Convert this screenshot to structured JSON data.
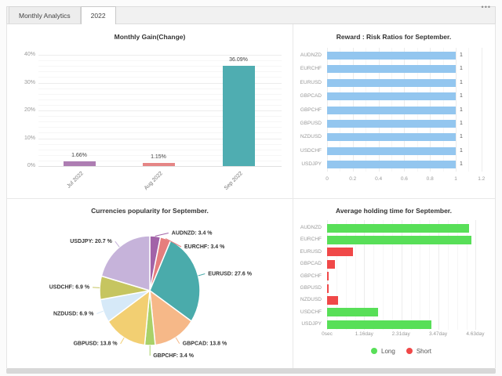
{
  "window": {
    "tabs": [
      {
        "label": "Monthly Analytics",
        "active": false
      },
      {
        "label": "2022",
        "active": true
      }
    ]
  },
  "icons": {
    "more_menu": "•••"
  },
  "colors": {
    "teal": "#4fadb1",
    "purple": "#ad7db2",
    "salmon": "#e58585",
    "light_blue_bar": "#93c6ef",
    "long_green": "#58df58",
    "short_red": "#f04848",
    "grid_major": "#ececec",
    "grid_minor": "#f6f6f6",
    "axis_text": "#999999",
    "title_text": "#333333"
  },
  "chart_data": [
    {
      "id": "monthly_gain",
      "type": "bar",
      "title": "Monthly Gain(Change)",
      "categories": [
        "Jul 2022",
        "Aug 2022",
        "Sep 2022"
      ],
      "values": [
        1.66,
        1.15,
        36.09
      ],
      "value_labels": [
        "1.66%",
        "1.15%",
        "36.09%"
      ],
      "bar_colors": [
        "#ad7db2",
        "#e58585",
        "#4fadb1"
      ],
      "ylim": [
        0,
        40
      ],
      "ytick_values": [
        0,
        10,
        20,
        30,
        40
      ],
      "ytick_labels": [
        "0%",
        "10%",
        "20%",
        "30%",
        "40%"
      ],
      "grid": true
    },
    {
      "id": "reward_risk",
      "type": "bar-horizontal",
      "title": "Reward : Risk Ratios for September.",
      "categories": [
        "AUDNZD",
        "EURCHF",
        "EURUSD",
        "GBPCAD",
        "GBPCHF",
        "GBPUSD",
        "NZDUSD",
        "USDCHF",
        "USDJPY"
      ],
      "values": [
        1,
        1,
        1,
        1,
        1,
        1,
        1,
        1,
        1
      ],
      "value_labels": [
        "1",
        "1",
        "1",
        "1",
        "1",
        "1",
        "1",
        "1",
        "1"
      ],
      "bar_color": "#93c6ef",
      "xlim": [
        0,
        1.2
      ],
      "xtick_values": [
        0,
        0.2,
        0.4,
        0.6,
        0.8,
        1,
        1.2
      ],
      "xtick_labels": [
        "0",
        "0.2",
        "0.4",
        "0.6",
        "0.8",
        "1",
        "1.2"
      ],
      "grid": true
    },
    {
      "id": "currency_popularity",
      "type": "pie",
      "title": "Currencies popularity for September.",
      "slices": [
        {
          "name": "AUDNZD",
          "label": "AUDNZD: 3.4 %",
          "value": 3.4,
          "color": "#a263a8"
        },
        {
          "name": "EURCHF",
          "label": "EURCHF: 3.4 %",
          "value": 3.4,
          "color": "#e57e7e"
        },
        {
          "name": "EURUSD",
          "label": "EURUSD: 27.6 %",
          "value": 27.6,
          "color": "#4aabab"
        },
        {
          "name": "GBPCAD",
          "label": "GBPCAD: 13.8 %",
          "value": 13.8,
          "color": "#f6b888"
        },
        {
          "name": "GBPCHF",
          "label": "GBPCHF: 3.4 %",
          "value": 3.4,
          "color": "#a9d168"
        },
        {
          "name": "GBPUSD",
          "label": "GBPUSD: 13.8 %",
          "value": 13.8,
          "color": "#f2cf72"
        },
        {
          "name": "NZDUSD",
          "label": "NZDUSD: 6.9 %",
          "value": 6.9,
          "color": "#d6e9f8"
        },
        {
          "name": "USDCHF",
          "label": "USDCHF: 6.9 %",
          "value": 6.9,
          "color": "#c6c560"
        },
        {
          "name": "USDJPY",
          "label": "USDJPY: 20.7 %",
          "value": 20.7,
          "color": "#c6b3da"
        }
      ]
    },
    {
      "id": "holding_time",
      "type": "bar-horizontal",
      "title": "Average holding time for September.",
      "categories": [
        "AUDNZD",
        "EURCHF",
        "EURUSD",
        "GBPCAD",
        "GBPCHF",
        "GBPUSD",
        "NZDUSD",
        "USDCHF",
        "USDJPY"
      ],
      "values_days": [
        4.43,
        4.5,
        0.8,
        0.25,
        0.04,
        0.04,
        0.35,
        1.6,
        3.26
      ],
      "directions": [
        "long",
        "long",
        "short",
        "short",
        "short",
        "short",
        "short",
        "long",
        "long"
      ],
      "xlim_days": [
        0,
        4.63
      ],
      "xtick_values": [
        0,
        1.16,
        2.31,
        3.47,
        4.63
      ],
      "xtick_labels": [
        "0sec",
        "1.16day",
        "2.31day",
        "3.47day",
        "4.63day"
      ],
      "legend": [
        {
          "label": "Long",
          "color": "#58df58"
        },
        {
          "label": "Short",
          "color": "#f04848"
        }
      ],
      "grid": true
    }
  ]
}
